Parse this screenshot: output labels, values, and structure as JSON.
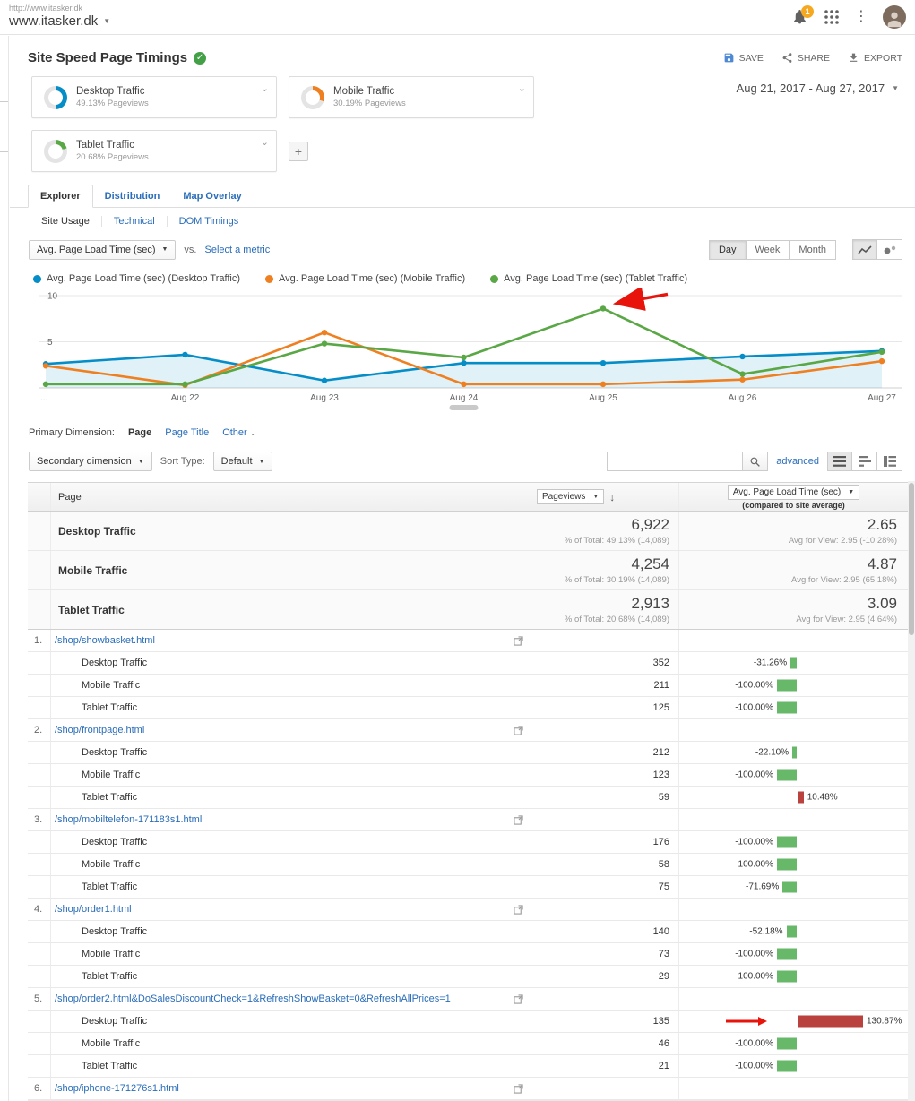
{
  "topbar": {
    "url": "http://www.itasker.dk",
    "site": "www.itasker.dk",
    "notification_count": "1"
  },
  "report_header": {
    "title": "Site Speed Page Timings",
    "save": "SAVE",
    "share": "SHARE",
    "export": "EXPORT"
  },
  "date_range": "Aug 21, 2017 - Aug 27, 2017",
  "segments": [
    {
      "label": "Desktop Traffic",
      "sub": "49.13% Pageviews",
      "pct": 49.13,
      "color": "#058dc7"
    },
    {
      "label": "Mobile Traffic",
      "sub": "30.19% Pageviews",
      "pct": 30.19,
      "color": "#ee8021"
    },
    {
      "label": "Tablet Traffic",
      "sub": "20.68% Pageviews",
      "pct": 20.68,
      "color": "#5aa746"
    }
  ],
  "add_segment": "+",
  "tabs": [
    {
      "label": "Explorer",
      "active": true
    },
    {
      "label": "Distribution",
      "active": false
    },
    {
      "label": "Map Overlay",
      "active": false
    }
  ],
  "subtabs": [
    {
      "label": "Site Usage",
      "active": true
    },
    {
      "label": "Technical",
      "active": false
    },
    {
      "label": "DOM Timings",
      "active": false
    }
  ],
  "metric_bar": {
    "metric": "Avg. Page Load Time (sec)",
    "vs": "vs.",
    "select_metric": "Select a metric",
    "day": "Day",
    "week": "Week",
    "month": "Month"
  },
  "legend": [
    {
      "label": "Avg. Page Load Time (sec) (Desktop Traffic)",
      "color": "#058dc7"
    },
    {
      "label": "Avg. Page Load Time (sec) (Mobile Traffic)",
      "color": "#ee8021"
    },
    {
      "label": "Avg. Page Load Time (sec) (Tablet Traffic)",
      "color": "#5aa746"
    }
  ],
  "chart_data": {
    "type": "line",
    "x": [
      "...",
      "Aug 22",
      "Aug 23",
      "Aug 24",
      "Aug 25",
      "Aug 26",
      "Aug 27"
    ],
    "ylim": [
      0,
      10
    ],
    "yticks": [
      5,
      10
    ],
    "series": [
      {
        "name": "Avg. Page Load Time (sec) (Desktop Traffic)",
        "color": "#058dc7",
        "area": true,
        "values": [
          2.6,
          3.6,
          0.8,
          2.7,
          2.7,
          3.4,
          4.0
        ]
      },
      {
        "name": "Avg. Page Load Time (sec) (Mobile Traffic)",
        "color": "#ee8021",
        "area": false,
        "values": [
          2.4,
          0.3,
          6.0,
          0.4,
          0.4,
          0.9,
          2.9
        ]
      },
      {
        "name": "Avg. Page Load Time (sec) (Tablet Traffic)",
        "color": "#5aa746",
        "area": false,
        "values": [
          0.4,
          0.4,
          4.8,
          3.3,
          8.6,
          1.5,
          3.9
        ]
      }
    ],
    "annotation": {
      "type": "arrow",
      "series": 2,
      "index": 4,
      "color": "#e8140c"
    }
  },
  "primary_dimension": {
    "label": "Primary Dimension:",
    "page": "Page",
    "page_title": "Page Title",
    "other": "Other"
  },
  "toolbar": {
    "secondary": "Secondary dimension",
    "sort_label": "Sort Type:",
    "sort_value": "Default",
    "advanced": "advanced",
    "search_value": ""
  },
  "colors": {
    "bar_negative": "#67b868",
    "bar_positive": "#b9423e",
    "arrow": "#e8140c",
    "link": "#2a6db9"
  },
  "table": {
    "headers": {
      "page": "Page",
      "pageviews": "Pageviews",
      "metric": "Avg. Page Load Time (sec)",
      "metric_sub": "(compared to site average)"
    },
    "summary": [
      {
        "name": "Desktop Traffic",
        "pageviews": "6,922",
        "pv_sub": "% of Total: 49.13% (14,089)",
        "metric": "2.65",
        "metric_sub": "Avg for View: 2.95 (-10.28%)"
      },
      {
        "name": "Mobile Traffic",
        "pageviews": "4,254",
        "pv_sub": "% of Total: 30.19% (14,089)",
        "metric": "4.87",
        "metric_sub": "Avg for View: 2.95 (65.18%)"
      },
      {
        "name": "Tablet Traffic",
        "pageviews": "2,913",
        "pv_sub": "% of Total: 20.68% (14,089)",
        "metric": "3.09",
        "metric_sub": "Avg for View: 2.95 (4.64%)"
      }
    ],
    "rows": [
      {
        "num": "1.",
        "url": "/shop/showbasket.html",
        "devices": [
          {
            "name": "Desktop Traffic",
            "pageviews": "352",
            "pct": -31.26,
            "label": "-31.26%"
          },
          {
            "name": "Mobile Traffic",
            "pageviews": "211",
            "pct": -100,
            "label": "-100.00%"
          },
          {
            "name": "Tablet Traffic",
            "pageviews": "125",
            "pct": -100,
            "label": "-100.00%"
          }
        ]
      },
      {
        "num": "2.",
        "url": "/shop/frontpage.html",
        "devices": [
          {
            "name": "Desktop Traffic",
            "pageviews": "212",
            "pct": -22.1,
            "label": "-22.10%"
          },
          {
            "name": "Mobile Traffic",
            "pageviews": "123",
            "pct": -100,
            "label": "-100.00%"
          },
          {
            "name": "Tablet Traffic",
            "pageviews": "59",
            "pct": 10.48,
            "label": "10.48%"
          }
        ]
      },
      {
        "num": "3.",
        "url": "/shop/mobiltelefon-171183s1.html",
        "devices": [
          {
            "name": "Desktop Traffic",
            "pageviews": "176",
            "pct": -100,
            "label": "-100.00%"
          },
          {
            "name": "Mobile Traffic",
            "pageviews": "58",
            "pct": -100,
            "label": "-100.00%"
          },
          {
            "name": "Tablet Traffic",
            "pageviews": "75",
            "pct": -71.69,
            "label": "-71.69%"
          }
        ]
      },
      {
        "num": "4.",
        "url": "/shop/order1.html",
        "devices": [
          {
            "name": "Desktop Traffic",
            "pageviews": "140",
            "pct": -52.18,
            "label": "-52.18%"
          },
          {
            "name": "Mobile Traffic",
            "pageviews": "73",
            "pct": -100,
            "label": "-100.00%"
          },
          {
            "name": "Tablet Traffic",
            "pageviews": "29",
            "pct": -100,
            "label": "-100.00%"
          }
        ]
      },
      {
        "num": "5.",
        "url": "/shop/order2.html&DoSalesDiscountCheck=1&RefreshShowBasket=0&RefreshAllPrices=1",
        "devices": [
          {
            "name": "Desktop Traffic",
            "pageviews": "135",
            "pct": 130.87,
            "label": "130.87%",
            "arrow": true
          },
          {
            "name": "Mobile Traffic",
            "pageviews": "46",
            "pct": -100,
            "label": "-100.00%"
          },
          {
            "name": "Tablet Traffic",
            "pageviews": "21",
            "pct": -100,
            "label": "-100.00%"
          }
        ]
      },
      {
        "num": "6.",
        "url": "/shop/iphone-171276s1.html",
        "devices": []
      }
    ]
  }
}
